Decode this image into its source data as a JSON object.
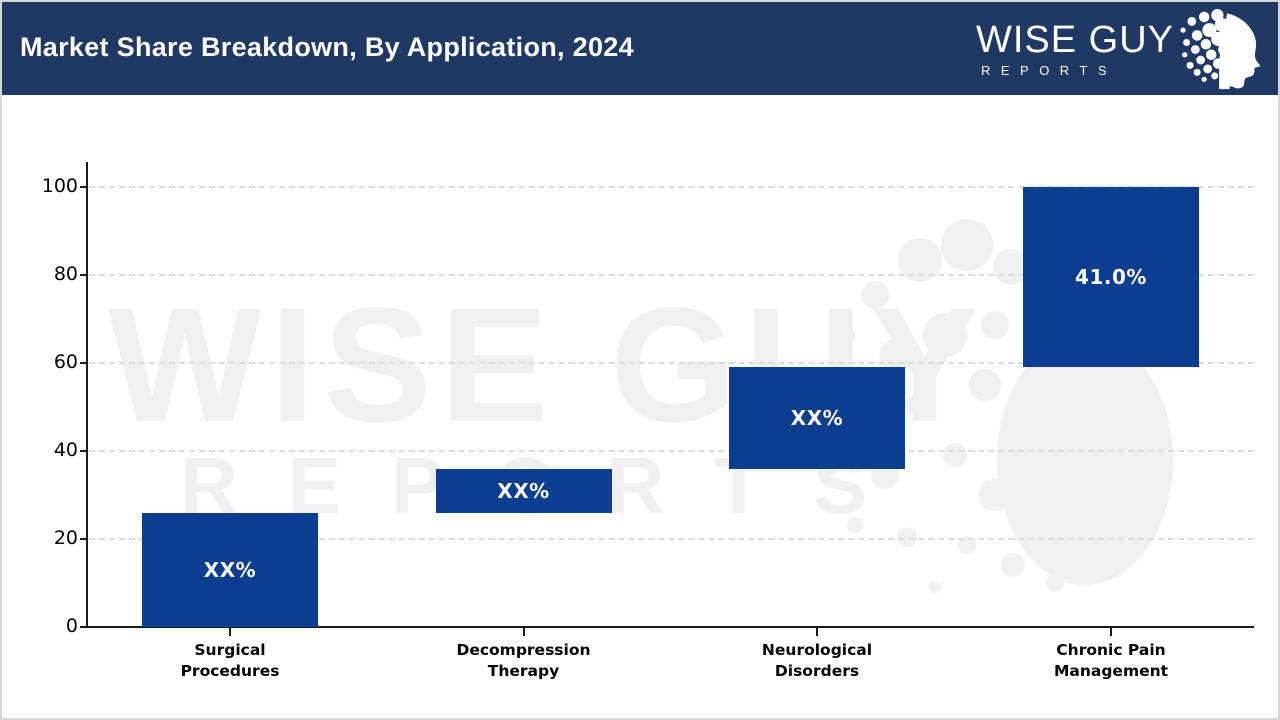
{
  "header": {
    "title": "Market Share Breakdown, By Application, 2024",
    "bg_color": "#1f3864",
    "brand": {
      "name_line1": "WISE GUY",
      "name_line2": "REPORTS"
    }
  },
  "watermark": {
    "line1": "WISE GUY",
    "line2": "REPORTS"
  },
  "chart_data": {
    "type": "bar",
    "variant": "floating stacked segment bars (market-share waterfall)",
    "title": "Market Share Breakdown, By Application, 2024",
    "categories": [
      "Surgical Procedures",
      "Decompression Therapy",
      "Neurological Disorders",
      "Chronic Pain Management"
    ],
    "categories_lines": [
      [
        "Surgical",
        "Procedures"
      ],
      [
        "Decompression",
        "Therapy"
      ],
      [
        "Neurological",
        "Disorders"
      ],
      [
        "Chronic Pain",
        "Management"
      ]
    ],
    "segments": [
      {
        "category": "Surgical Procedures",
        "from": 0,
        "to": 26,
        "label": "XX%"
      },
      {
        "category": "Decompression Therapy",
        "from": 26,
        "to": 36,
        "label": "XX%"
      },
      {
        "category": "Neurological Disorders",
        "from": 36,
        "to": 59,
        "label": "XX%"
      },
      {
        "category": "Chronic Pain Management",
        "from": 59,
        "to": 100,
        "label": "41.0%"
      }
    ],
    "yticks": [
      0,
      20,
      40,
      60,
      80,
      100
    ],
    "ylim": [
      0,
      107
    ],
    "xlabel": "",
    "ylabel": "",
    "grid": "horizontal dashed gridlines",
    "legend": "none",
    "bar_color": "#0b3d91",
    "axis_color": "#1a1a1a",
    "gridline_color": "#dcdcdc"
  }
}
